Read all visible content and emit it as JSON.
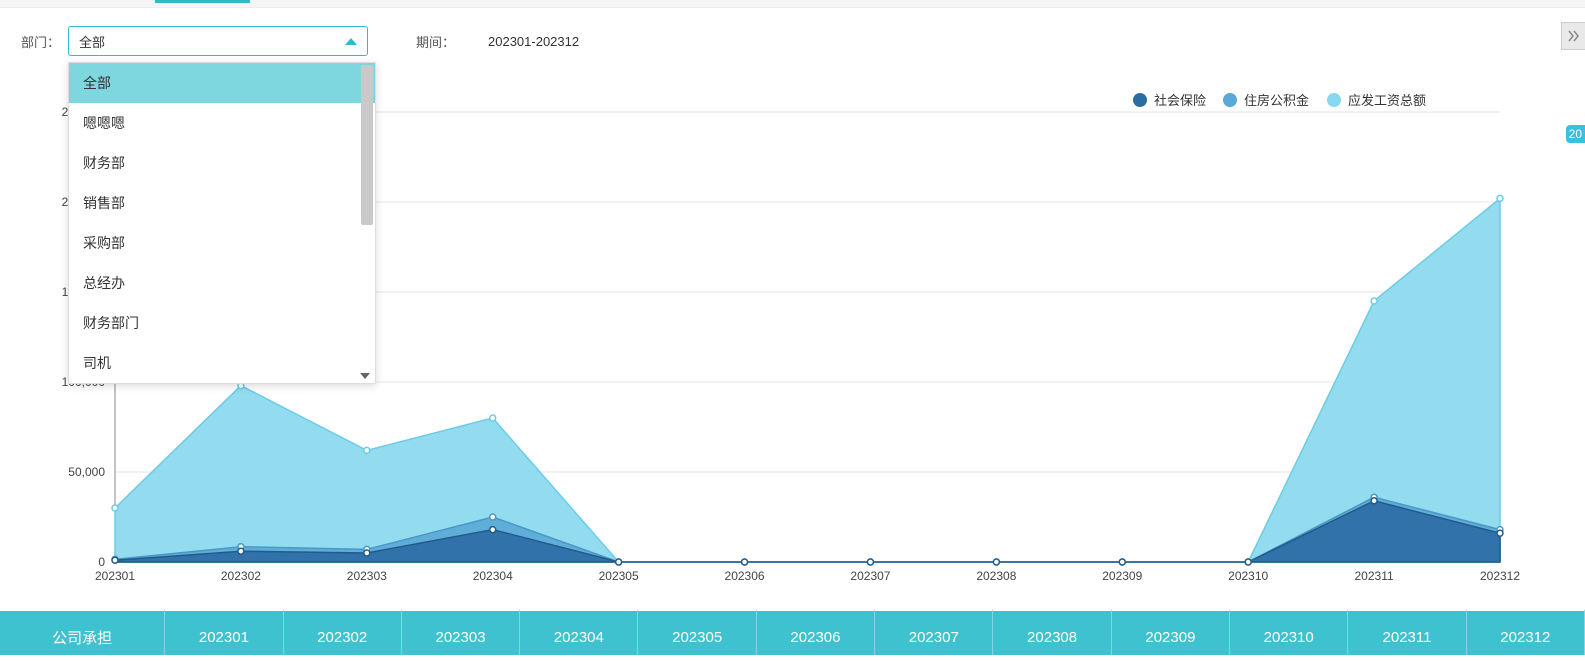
{
  "filters": {
    "department_label": "部门：",
    "department_selected": "全部",
    "period_label": "期间：",
    "period_value": "202301-202312",
    "options": [
      "全部",
      "嗯嗯嗯",
      "财务部",
      "销售部",
      "采购部",
      "总经办",
      "财务部门",
      "司机"
    ]
  },
  "chart": {
    "type": "area",
    "background_color": "#ffffff",
    "grid_color": "#e5e5e5",
    "axis_color": "#888888",
    "label_fontsize": 12,
    "x_categories": [
      "202301",
      "202302",
      "202303",
      "202304",
      "202305",
      "202306",
      "202307",
      "202308",
      "202309",
      "202310",
      "202311",
      "202312"
    ],
    "y_ticks": [
      0,
      50000,
      100000,
      150000,
      200000,
      250000
    ],
    "y_tick_labels": [
      "0",
      "50,000",
      "100,000",
      "150,000",
      "200,000",
      "250,000"
    ],
    "ylim": [
      0,
      250000
    ],
    "legend": [
      {
        "label": "社会保险",
        "color": "#2b6ca3"
      },
      {
        "label": "住房公积金",
        "color": "#5aa9d6"
      },
      {
        "label": "应发工资总额",
        "color": "#87d8ee"
      }
    ],
    "legend_position": "top-right",
    "series": [
      {
        "name": "应发工资总额",
        "color": "#87d8ee",
        "stroke": "#6ccce6",
        "values": [
          30000,
          98000,
          62000,
          80000,
          0,
          0,
          0,
          0,
          0,
          0,
          145000,
          202000
        ]
      },
      {
        "name": "住房公积金",
        "color": "#5aa9d6",
        "stroke": "#4a98c6",
        "values": [
          1500,
          8500,
          7000,
          25000,
          0,
          0,
          0,
          0,
          0,
          0,
          36000,
          18000
        ]
      },
      {
        "name": "社会保险",
        "color": "#2b6ca3",
        "stroke": "#235b8a",
        "values": [
          1000,
          6000,
          5000,
          18000,
          0,
          0,
          0,
          0,
          0,
          0,
          34000,
          16000
        ]
      }
    ],
    "marker_radius": 3
  },
  "footer": {
    "bg_color": "#3fc2cf",
    "first_cell": "公司承担",
    "months": [
      "202301",
      "202302",
      "202303",
      "202304",
      "202305",
      "202306",
      "202307",
      "202308",
      "202309",
      "202310",
      "202311",
      "202312"
    ]
  },
  "side_badge": "20"
}
